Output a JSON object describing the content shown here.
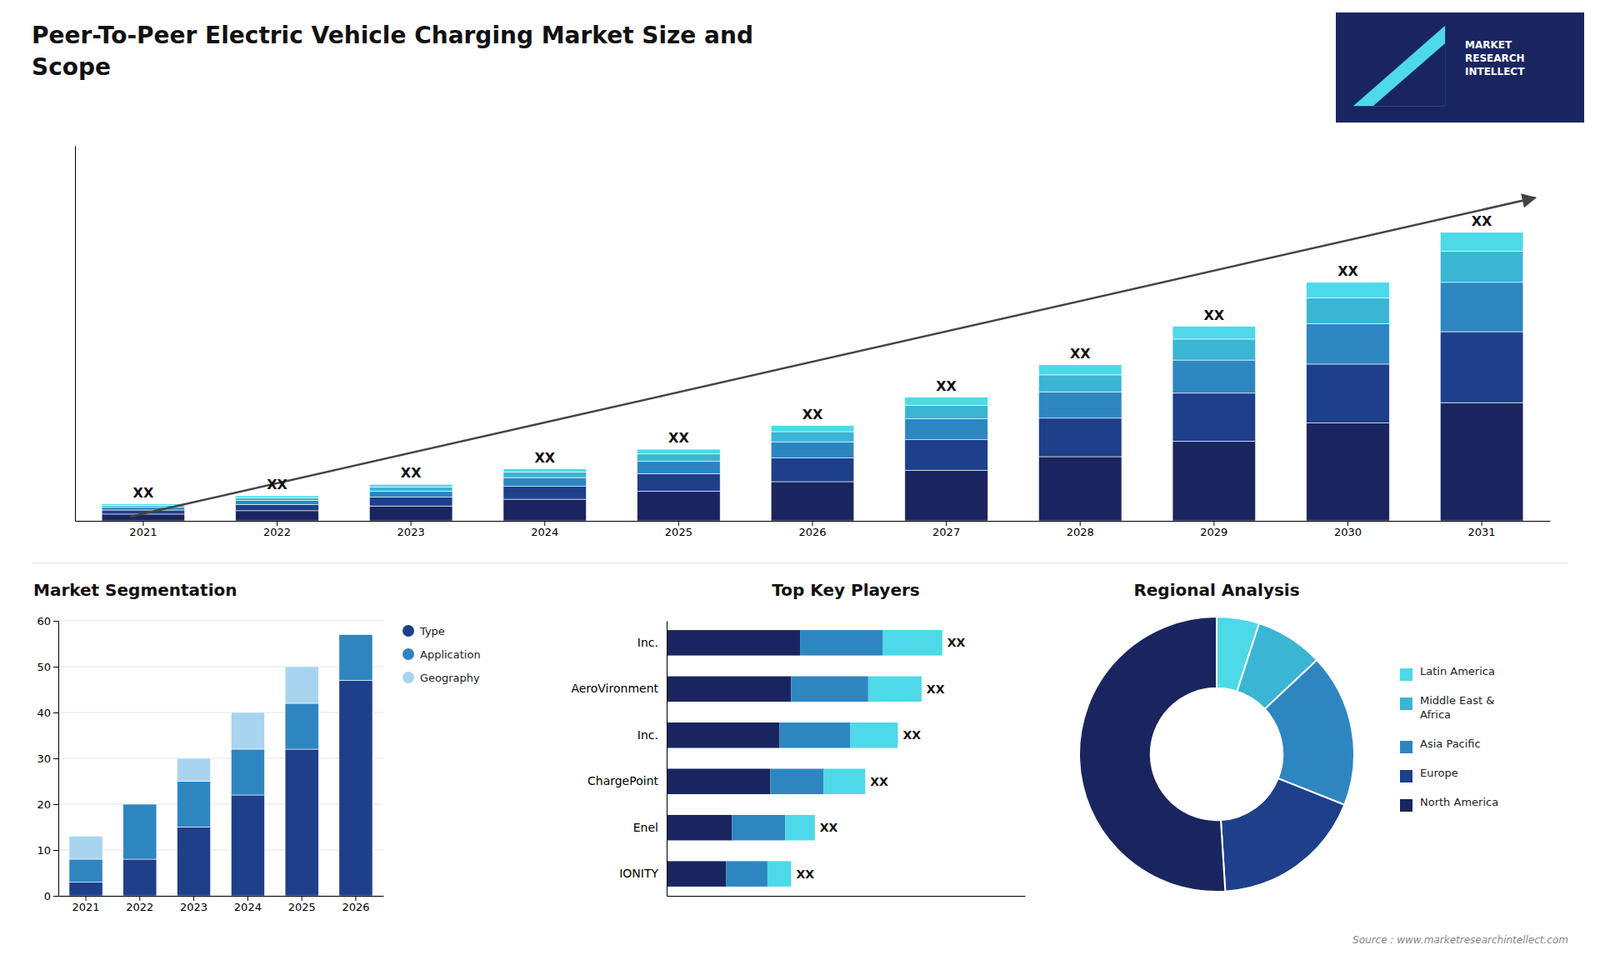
{
  "chart_data": [
    {
      "type": "bar",
      "title": "Peer-To-Peer Electric Vehicle Charging Market Size and\nScope",
      "logo": "MARKET\nRESEARCH\nINTELLECT",
      "source": "Source : www.marketresearchintellect.com",
      "stacked": true,
      "categories": [
        "2021",
        "2022",
        "2023",
        "2024",
        "2025",
        "2026",
        "2027",
        "2028",
        "2029",
        "2030",
        "2031"
      ],
      "series": [
        {
          "color": "#1a2560",
          "values": [
            1.0,
            1.5,
            2.2,
            3.2,
            4.4,
            5.8,
            7.5,
            9.5,
            11.8,
            14.5,
            17.5
          ]
        },
        {
          "color": "#1e3f8a",
          "values": [
            0.6,
            0.9,
            1.3,
            1.9,
            2.6,
            3.5,
            4.5,
            5.7,
            7.1,
            8.7,
            10.5
          ]
        },
        {
          "color": "#2e86c1",
          "values": [
            0.4,
            0.6,
            0.9,
            1.3,
            1.8,
            2.4,
            3.1,
            3.9,
            4.9,
            6.0,
            7.3
          ]
        },
        {
          "color": "#3ab5d4",
          "values": [
            0.3,
            0.4,
            0.6,
            0.8,
            1.1,
            1.5,
            2.0,
            2.5,
            3.1,
            3.8,
            4.6
          ]
        },
        {
          "color": "#4dd9e8",
          "values": [
            0.2,
            0.3,
            0.4,
            0.5,
            0.7,
            0.9,
            1.2,
            1.5,
            1.9,
            2.3,
            2.8
          ]
        }
      ],
      "ylim": [
        0,
        55.51
      ],
      "tick_labels": "x",
      "grid": false,
      "annotations": [
        "XX",
        "XX",
        "XX",
        "XX",
        "XX",
        "XX",
        "XX",
        "XX",
        "XX",
        "XX",
        "XX"
      ]
    },
    {
      "type": "bar",
      "title": "Market Segmentation",
      "stacked": true,
      "categories": [
        "2021",
        "2022",
        "2023",
        "2024",
        "2025",
        "2026"
      ],
      "series": [
        {
          "name": "Type",
          "color": "#1e3f8a",
          "values": [
            3,
            8,
            15,
            22,
            32,
            47
          ]
        },
        {
          "name": "Application",
          "color": "#2e86c1",
          "values": [
            5,
            12,
            10,
            10,
            10,
            10
          ]
        },
        {
          "name": "Geography",
          "color": "#a8d4f0",
          "values": [
            5,
            0,
            5,
            8,
            8,
            0
          ]
        }
      ],
      "ylim": [
        0,
        60
      ],
      "yticks": [
        0,
        10,
        20,
        30,
        40,
        50,
        60
      ],
      "grid": true,
      "legend": "right"
    },
    {
      "type": "bar",
      "title": "Top Key Players",
      "orientation": "horizontal",
      "stacked": true,
      "categories": [
        "Inc.",
        "AeroVironment",
        "Inc.",
        "ChargePoint",
        "Enel",
        "IONITY"
      ],
      "series": [
        {
          "color": "#1a2560",
          "values": [
            4.5,
            4.2,
            3.8,
            3.5,
            2.2,
            2.0
          ]
        },
        {
          "color": "#2e86c1",
          "values": [
            2.8,
            2.6,
            2.4,
            1.8,
            1.8,
            1.4
          ]
        },
        {
          "color": "#4dd9e8",
          "values": [
            2.0,
            1.8,
            1.6,
            1.4,
            1.0,
            0.8
          ]
        }
      ],
      "xlim": [
        0,
        12.09
      ],
      "tick_labels": "y",
      "grid": false,
      "annotations": [
        "XX",
        "XX",
        "XX",
        "XX",
        "XX",
        "XX"
      ]
    },
    {
      "type": "pie",
      "title": "Regional Analysis",
      "categories": [
        "Latin America",
        "Middle East &\nAfrica",
        "Asia Pacific",
        "Europe",
        "North America"
      ],
      "values": [
        5,
        8,
        18,
        18,
        51
      ],
      "colors": [
        "#4dd9e8",
        "#3ab5d4",
        "#2e86c1",
        "#1e3f8a",
        "#1a2560"
      ],
      "legend": "right"
    }
  ]
}
